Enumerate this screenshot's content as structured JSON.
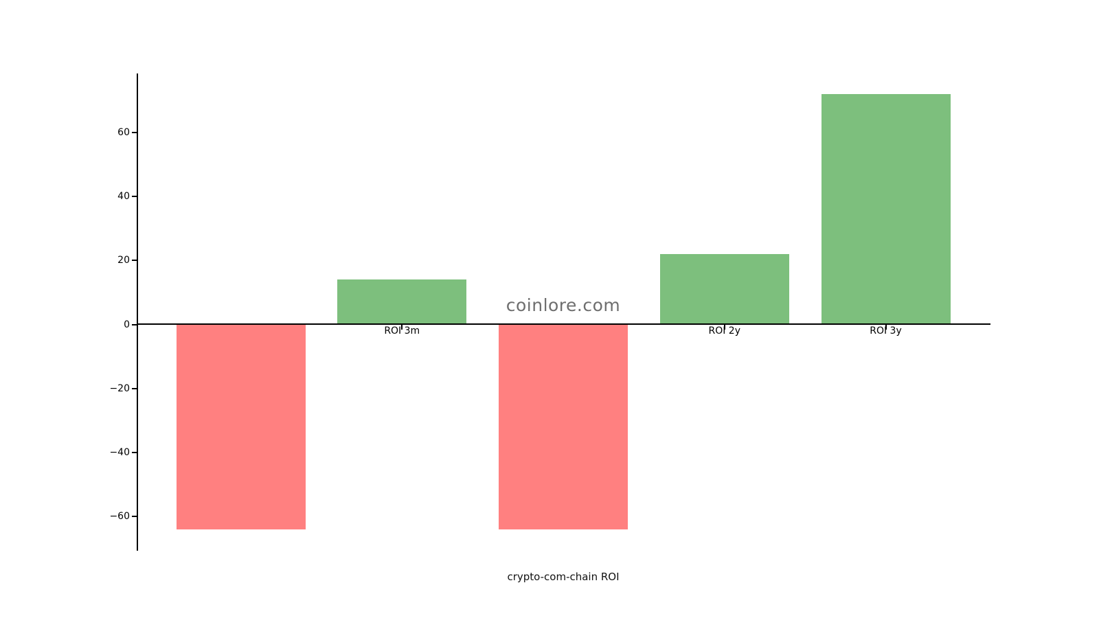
{
  "page": {
    "background": "#ffffff"
  },
  "chart_data": {
    "type": "bar",
    "title": "",
    "xlabel": "crypto-com-chain ROI",
    "ylabel": "",
    "watermark": "coinlore.com",
    "categories": [
      "",
      "ROI 3m",
      "",
      "ROI 2y",
      "ROI 3y"
    ],
    "values": [
      -64,
      14,
      -64,
      22,
      72
    ],
    "bar_colors": [
      "#ff8080",
      "#7dbf7d",
      "#ff8080",
      "#7dbf7d",
      "#7dbf7d"
    ],
    "yticks": [
      60,
      40,
      20,
      0,
      -20,
      -40,
      -60
    ],
    "ytick_labels": [
      "60",
      "40",
      "20",
      "0",
      "−20",
      "−40",
      "−60"
    ],
    "ylim": [
      -70.8,
      78.8
    ],
    "grid": false,
    "legend": false,
    "colors": {
      "positive": "#7dbf7d",
      "negative": "#ff8080",
      "axis": "#000000",
      "tick_text": "#000000",
      "watermark_text": "#6e6e6e",
      "xlabel_text": "#111111",
      "background": "#ffffff"
    }
  }
}
